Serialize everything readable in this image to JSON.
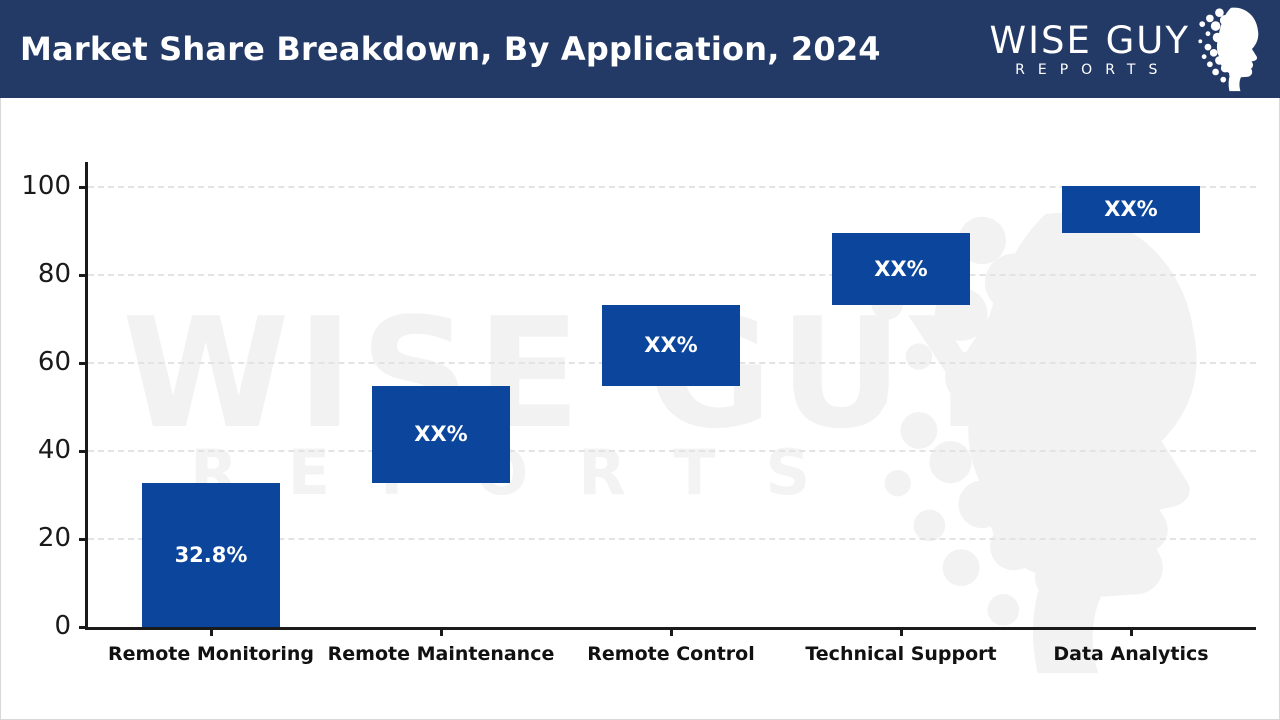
{
  "header": {
    "title": "Market Share Breakdown, By Application, 2024",
    "logo": {
      "line1": "WISE GUY",
      "line2": "REPORTS"
    }
  },
  "watermark": {
    "line1": "WISE GUY",
    "line2": "REPORTS"
  },
  "colors": {
    "header_bg": "#233a66",
    "bar": "#0c469c",
    "grid": "#e3e3e3",
    "axis": "#1a1a1a",
    "bar_label": "#ffffff",
    "watermark": "#f2f2f2"
  },
  "chart_data": {
    "type": "bar",
    "subtype": "waterfall",
    "title": "Market Share Breakdown, By Application, 2024",
    "xlabel": "",
    "ylabel": "",
    "categories": [
      "Remote Monitoring",
      "Remote Maintenance",
      "Remote Control",
      "Technical Support",
      "Data Analytics"
    ],
    "segments": [
      {
        "category": "Remote Monitoring",
        "start": 0,
        "end": 32.8,
        "value": 32.8,
        "label": "32.8%"
      },
      {
        "category": "Remote Maintenance",
        "start": 32.8,
        "end": 54.8,
        "value": 22.0,
        "label": "XX%"
      },
      {
        "category": "Remote Control",
        "start": 54.8,
        "end": 73.2,
        "value": 18.4,
        "label": "XX%"
      },
      {
        "category": "Technical Support",
        "start": 73.2,
        "end": 89.5,
        "value": 16.3,
        "label": "XX%"
      },
      {
        "category": "Data Analytics",
        "start": 89.5,
        "end": 100.3,
        "value": 10.8,
        "label": "XX%"
      }
    ],
    "yticks": [
      0,
      20,
      40,
      60,
      80,
      100
    ],
    "ylim": [
      0,
      106
    ],
    "grid": "horizontal-dashed",
    "legend": "none"
  }
}
